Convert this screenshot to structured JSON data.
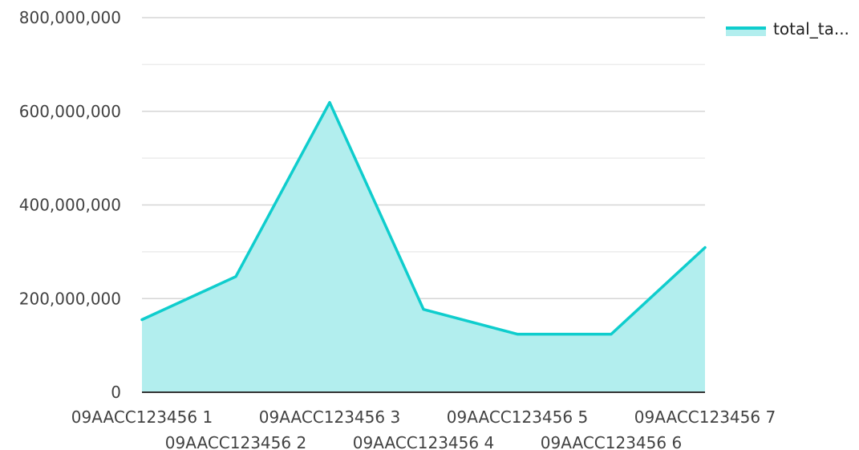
{
  "chart_data": {
    "type": "area",
    "categories": [
      "09AACC123456 1",
      "09AACC123456 2",
      "09AACC123456 3",
      "09AACC123456 4",
      "09AACC123456 5",
      "09AACC123456 6",
      "09AACC123456 7"
    ],
    "series": [
      {
        "name": "total_ta...",
        "values": [
          155000000,
          247000000,
          619000000,
          177000000,
          124000000,
          124000000,
          309000000
        ]
      }
    ],
    "y_ticks": [
      "0",
      "200,000,000",
      "400,000,000",
      "600,000,000",
      "800,000,000"
    ],
    "ylim": [
      0,
      800000000
    ],
    "grid": true,
    "legend_position": "top-right",
    "colors": {
      "line": "#0fcdcd",
      "fill": "#b2eeee",
      "gridline": "#d6d6d6",
      "minor_gridline": "#ececec",
      "baseline": "#333333"
    }
  }
}
